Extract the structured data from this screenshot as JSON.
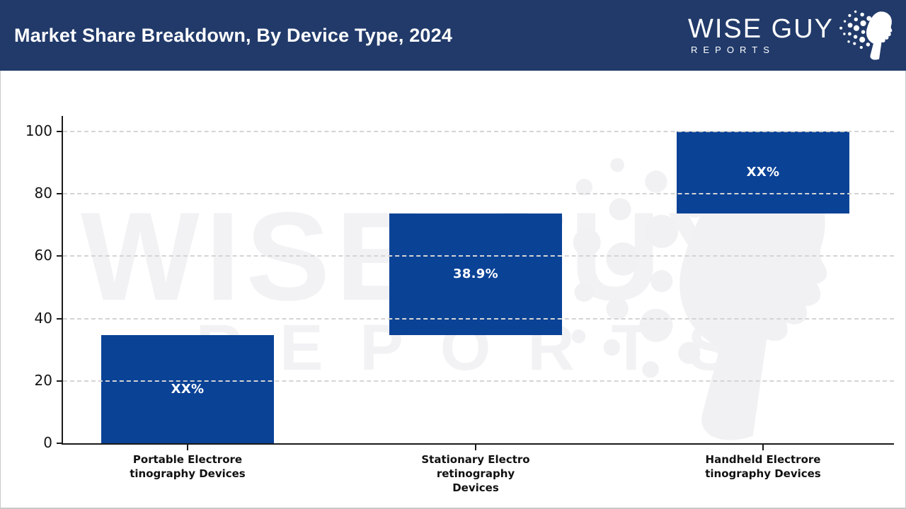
{
  "header": {
    "title": "Market Share Breakdown, By Device Type, 2024",
    "logo": {
      "line1": "WISE GUY",
      "line2": "REPORTS"
    },
    "bg_color": "#213a6a"
  },
  "watermark": {
    "line1": "WISE GUY",
    "line2": "REPORTS"
  },
  "chart_data": {
    "type": "bar",
    "variant": "waterfall-floating-segments",
    "title": "Market Share Breakdown, By Device Type, 2024",
    "categories": [
      "Portable Electroretinography Devices",
      "Stationary Electroretinography Devices",
      "Handheld Electroretinography Devices"
    ],
    "category_label_lines": [
      [
        "Portable Electrore",
        "tinography Devices"
      ],
      [
        "Stationary Electro",
        "retinography",
        "Devices"
      ],
      [
        "Handheld Electrore",
        "tinography Devices"
      ]
    ],
    "segments": [
      {
        "category": "Portable Electroretinography Devices",
        "start": 0,
        "end": 34.8,
        "value_label": "XX%"
      },
      {
        "category": "Stationary Electroretinography Devices",
        "start": 34.8,
        "end": 73.7,
        "value": 38.9,
        "value_label": "38.9%"
      },
      {
        "category": "Handheld Electroretinography Devices",
        "start": 73.7,
        "end": 100,
        "value_label": "XX%"
      }
    ],
    "xlabel": "",
    "ylabel": "",
    "ylim": [
      0,
      100
    ],
    "yticks": [
      0,
      20,
      40,
      60,
      80,
      100
    ],
    "grid": {
      "horizontal": true,
      "style": "dashed",
      "color": "#d4d4d4"
    },
    "bar_color": "#0a4296",
    "bar_label_color": "#ffffff",
    "axis_color": "#1a1a1a",
    "legend": null
  }
}
